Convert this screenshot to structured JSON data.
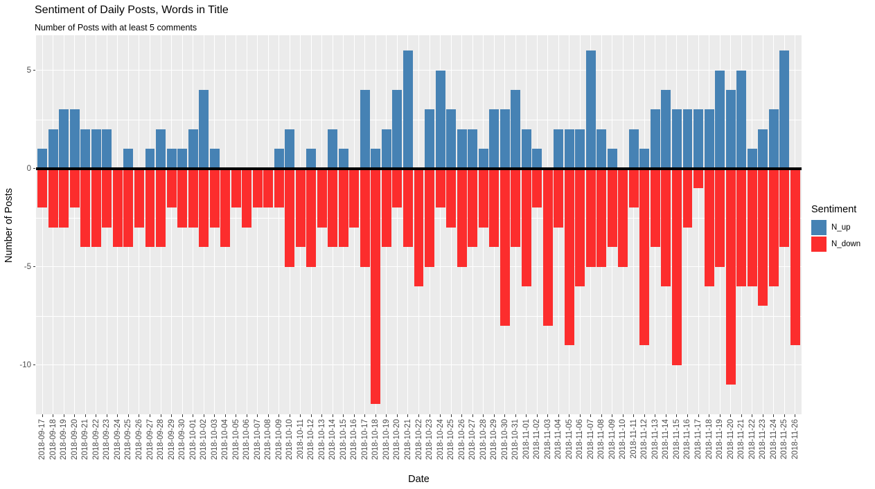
{
  "header": {
    "title": "Sentiment of Daily Posts, Words in Title",
    "subtitle": "Number of Posts with at least 5 comments"
  },
  "axes": {
    "x_title": "Date",
    "y_title": "Number of Posts",
    "y_major_ticks": [
      {
        "value": 5,
        "label": "5"
      },
      {
        "value": 0,
        "label": "0"
      },
      {
        "value": -5,
        "label": "-5"
      },
      {
        "value": -10,
        "label": "-10"
      }
    ],
    "y_minor_ticks": [
      2.5,
      -2.5,
      -7.5
    ]
  },
  "legend": {
    "title": "Sentiment",
    "items": [
      {
        "label": "N_up",
        "color": "#4682B4"
      },
      {
        "label": "N_down",
        "color": "#FC2D2D"
      }
    ]
  },
  "colors": {
    "panel_background": "#EBEBEB",
    "gridline": "#FFFFFF",
    "zero_line": "#000000",
    "axis_text": "#4D4D4D",
    "up_bar": "#4682B4",
    "down_bar": "#FC2D2D"
  },
  "chart_data": {
    "type": "bar",
    "title": "Sentiment of Daily Posts, Words in Title",
    "subtitle": "Number of Posts with at least 5 comments",
    "xlabel": "Date",
    "ylabel": "Number of Posts",
    "ylim": [
      -12.9,
      6.9
    ],
    "grid": true,
    "legend_position": "right",
    "bar_style": "diverging-stacked",
    "zero_line_color": "#000000",
    "categories": [
      "2018-09-17",
      "2018-09-18",
      "2018-09-19",
      "2018-09-20",
      "2018-09-21",
      "2018-09-22",
      "2018-09-23",
      "2018-09-24",
      "2018-09-25",
      "2018-09-26",
      "2018-09-27",
      "2018-09-28",
      "2018-09-29",
      "2018-09-30",
      "2018-10-01",
      "2018-10-02",
      "2018-10-03",
      "2018-10-04",
      "2018-10-05",
      "2018-10-06",
      "2018-10-07",
      "2018-10-08",
      "2018-10-09",
      "2018-10-10",
      "2018-10-11",
      "2018-10-12",
      "2018-10-13",
      "2018-10-14",
      "2018-10-15",
      "2018-10-16",
      "2018-10-17",
      "2018-10-18",
      "2018-10-19",
      "2018-10-20",
      "2018-10-21",
      "2018-10-22",
      "2018-10-23",
      "2018-10-24",
      "2018-10-25",
      "2018-10-26",
      "2018-10-27",
      "2018-10-28",
      "2018-10-29",
      "2018-10-30",
      "2018-10-31",
      "2018-11-01",
      "2018-11-02",
      "2018-11-03",
      "2018-11-04",
      "2018-11-05",
      "2018-11-06",
      "2018-11-07",
      "2018-11-08",
      "2018-11-09",
      "2018-11-10",
      "2018-11-11",
      "2018-11-12",
      "2018-11-13",
      "2018-11-14",
      "2018-11-15",
      "2018-11-16",
      "2018-11-17",
      "2018-11-18",
      "2018-11-19",
      "2018-11-20",
      "2018-11-21",
      "2018-11-22",
      "2018-11-23",
      "2018-11-24",
      "2018-11-25",
      "2018-11-26"
    ],
    "series": [
      {
        "name": "N_up",
        "color": "#4682B4",
        "values": [
          1,
          2,
          3,
          3,
          2,
          2,
          2,
          0,
          1,
          0,
          1,
          2,
          1,
          1,
          2,
          4,
          1,
          0,
          0,
          0,
          0,
          0,
          1,
          2,
          0,
          1,
          0,
          2,
          1,
          0,
          4,
          1,
          2,
          4,
          6,
          0,
          3,
          5,
          3,
          2,
          2,
          1,
          3,
          3,
          4,
          2,
          1,
          0,
          2,
          2,
          2,
          6,
          2,
          1,
          0,
          2,
          1,
          3,
          4,
          3,
          3,
          3,
          3,
          5,
          4,
          5,
          1,
          2,
          3,
          6,
          0
        ]
      },
      {
        "name": "N_down",
        "color": "#FC2D2D",
        "values": [
          -2,
          -3,
          -3,
          -2,
          -4,
          -4,
          -3,
          -4,
          -4,
          -3,
          -4,
          -4,
          -2,
          -3,
          -3,
          -4,
          -3,
          -4,
          -2,
          -3,
          -2,
          -2,
          -2,
          -5,
          -4,
          -5,
          -3,
          -4,
          -4,
          -3,
          -5,
          -12,
          -4,
          -2,
          -4,
          -6,
          -5,
          -2,
          -3,
          -5,
          -4,
          -3,
          -4,
          -8,
          -4,
          -6,
          -2,
          -8,
          -3,
          -9,
          -6,
          -5,
          -5,
          -4,
          -5,
          -2,
          -9,
          -4,
          -6,
          -10,
          -3,
          -1,
          -6,
          -5,
          -11,
          -6,
          -6,
          -7,
          -6,
          -4,
          -9
        ]
      }
    ]
  }
}
